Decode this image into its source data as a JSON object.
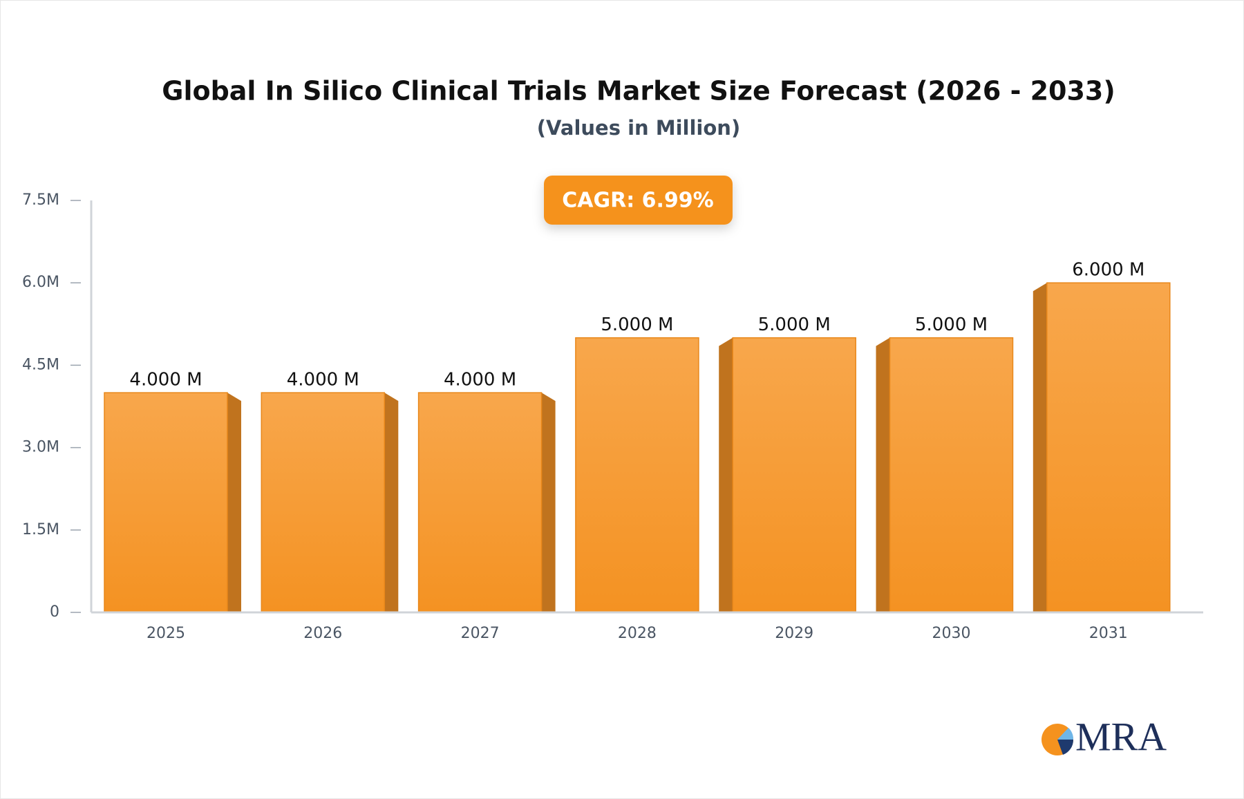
{
  "chart_data": {
    "type": "bar",
    "title": "Global In Silico Clinical Trials Market Size Forecast (2026 - 2033)",
    "subtitle": "(Values in Million)",
    "annotation": "CAGR: 6.99%",
    "logo": "MRA",
    "categories": [
      "2025",
      "2026",
      "2027",
      "2028",
      "2029",
      "2030",
      "2031"
    ],
    "values": [
      4,
      4,
      4,
      5,
      5,
      5,
      6
    ],
    "value_labels": [
      "4.000 M",
      "4.000 M",
      "4.000 M",
      "5.000 M",
      "5.000 M",
      "5.000 M",
      "6.000 M"
    ],
    "color": "#f59a30",
    "ylim": [
      0,
      7.5
    ],
    "yticks": [
      0,
      {
        "value": 1.5,
        "label": "1.5M"
      },
      {
        "value": 3,
        "label": "3.0M"
      },
      {
        "value": 4.5,
        "label": "4.5M"
      },
      {
        "value": 6,
        "label": "6.0M"
      },
      {
        "value": 7.5,
        "label": "7.5M"
      }
    ],
    "grid": false
  }
}
